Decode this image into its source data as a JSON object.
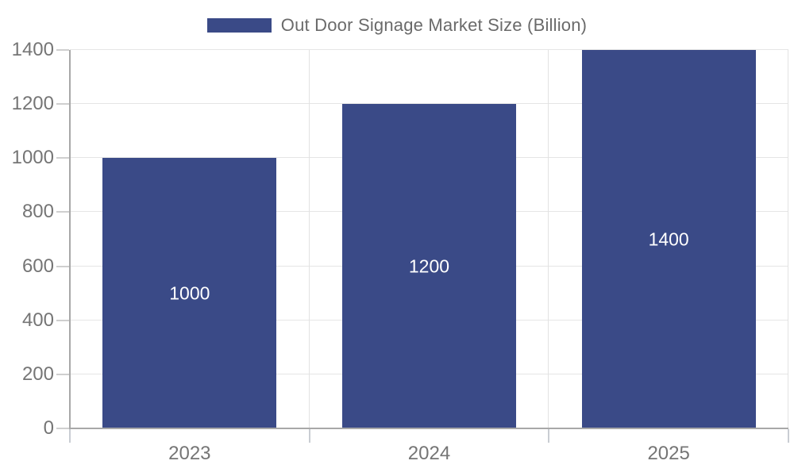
{
  "chart_data": {
    "type": "bar",
    "legend": {
      "label": "Out Door Signage Market Size (Billion)",
      "position": "top-center"
    },
    "categories": [
      "2023",
      "2024",
      "2025"
    ],
    "values": [
      1000,
      1200,
      1400
    ],
    "bar_value_labels": [
      "1000",
      "1200",
      "1400"
    ],
    "title": "",
    "xlabel": "",
    "ylabel": "",
    "ylim": [
      0,
      1400
    ],
    "yticks": [
      0,
      200,
      400,
      600,
      800,
      1000,
      1200,
      1400
    ],
    "grid": true,
    "colors": {
      "bar": "#3A4A87",
      "gridline": "#e5e5e5",
      "separator": "#e2e2e2",
      "axis": "#a8a8a8",
      "tick_mark": "#c9cdd3",
      "tick_label": "#757575",
      "legend_text": "#6a6a6a",
      "bar_label": "#ffffff",
      "background": "#ffffff"
    }
  }
}
